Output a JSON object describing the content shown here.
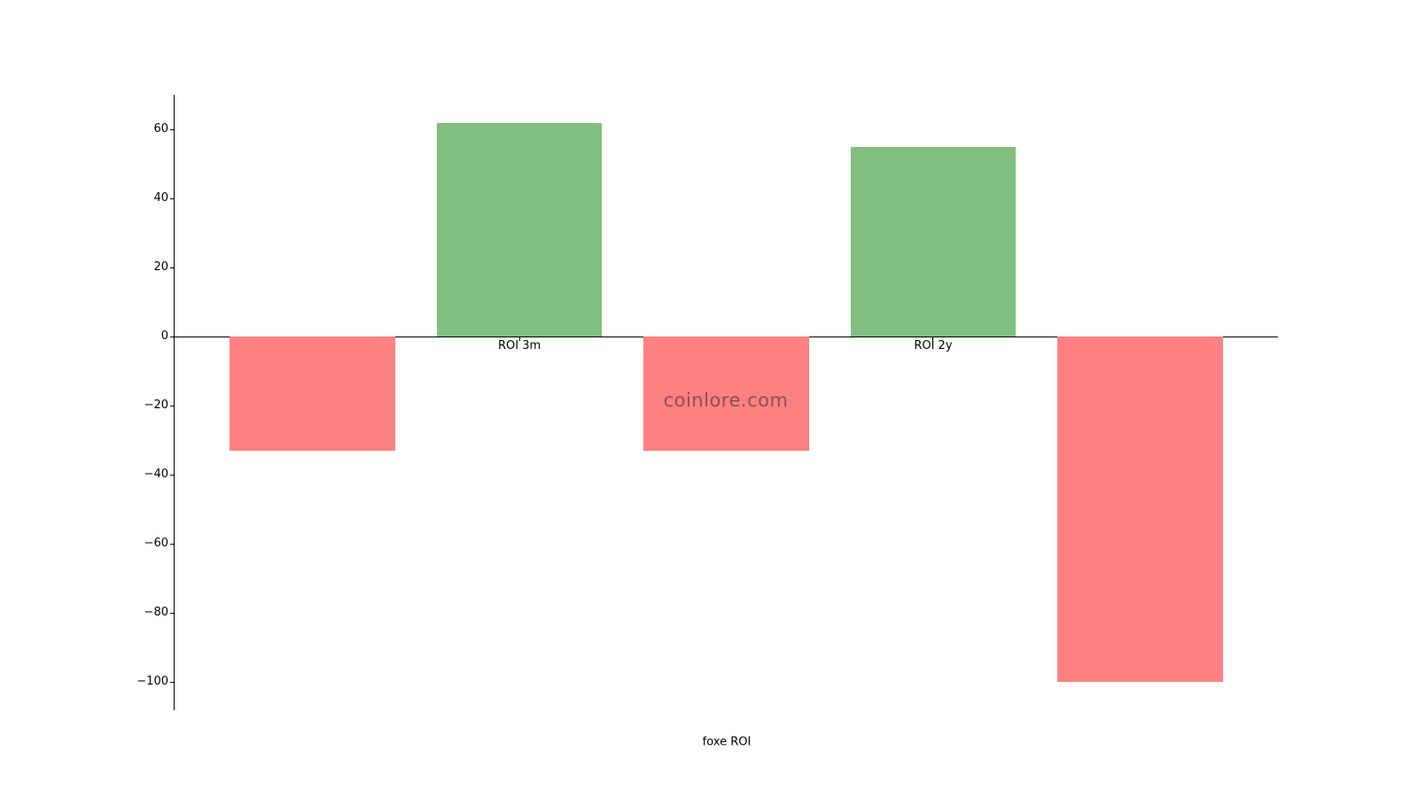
{
  "figure": {
    "background": "#ffffff",
    "watermark": "coinlore.com",
    "watermark_color": "rgba(51,51,51,0.6)"
  },
  "chart_data": {
    "type": "bar",
    "title": "",
    "xlabel": "foxe ROI",
    "ylabel": "",
    "bars": [
      {
        "x": 0,
        "value": -33,
        "color": "#ff8080"
      },
      {
        "x": 1,
        "value": 62,
        "color": "#80bf80"
      },
      {
        "x": 2,
        "value": -33,
        "color": "#ff8080"
      },
      {
        "x": 3,
        "value": 55,
        "color": "#80bf80"
      },
      {
        "x": 4,
        "value": -100,
        "color": "#ff8080"
      }
    ],
    "bar_width": 0.8,
    "xlim": [
      -0.6667,
      4.6667
    ],
    "ylim": [
      -108.1,
      70.1
    ],
    "y_ticks": [
      {
        "value": 60,
        "label": "60"
      },
      {
        "value": 40,
        "label": "40"
      },
      {
        "value": 20,
        "label": "20"
      },
      {
        "value": 0,
        "label": "0"
      },
      {
        "value": -20,
        "label": "−20"
      },
      {
        "value": -40,
        "label": "−40"
      },
      {
        "value": -60,
        "label": "−60"
      },
      {
        "value": -80,
        "label": "−80"
      },
      {
        "value": -100,
        "label": "−100"
      }
    ],
    "x_ticks": [
      {
        "pos": 1,
        "label": "ROI 3m"
      },
      {
        "pos": 3,
        "label": "ROI 2y"
      }
    ],
    "grid": false,
    "legend": null,
    "positive_color": "#80bf80",
    "negative_color": "#ff8080",
    "axis_color": "#000000"
  }
}
